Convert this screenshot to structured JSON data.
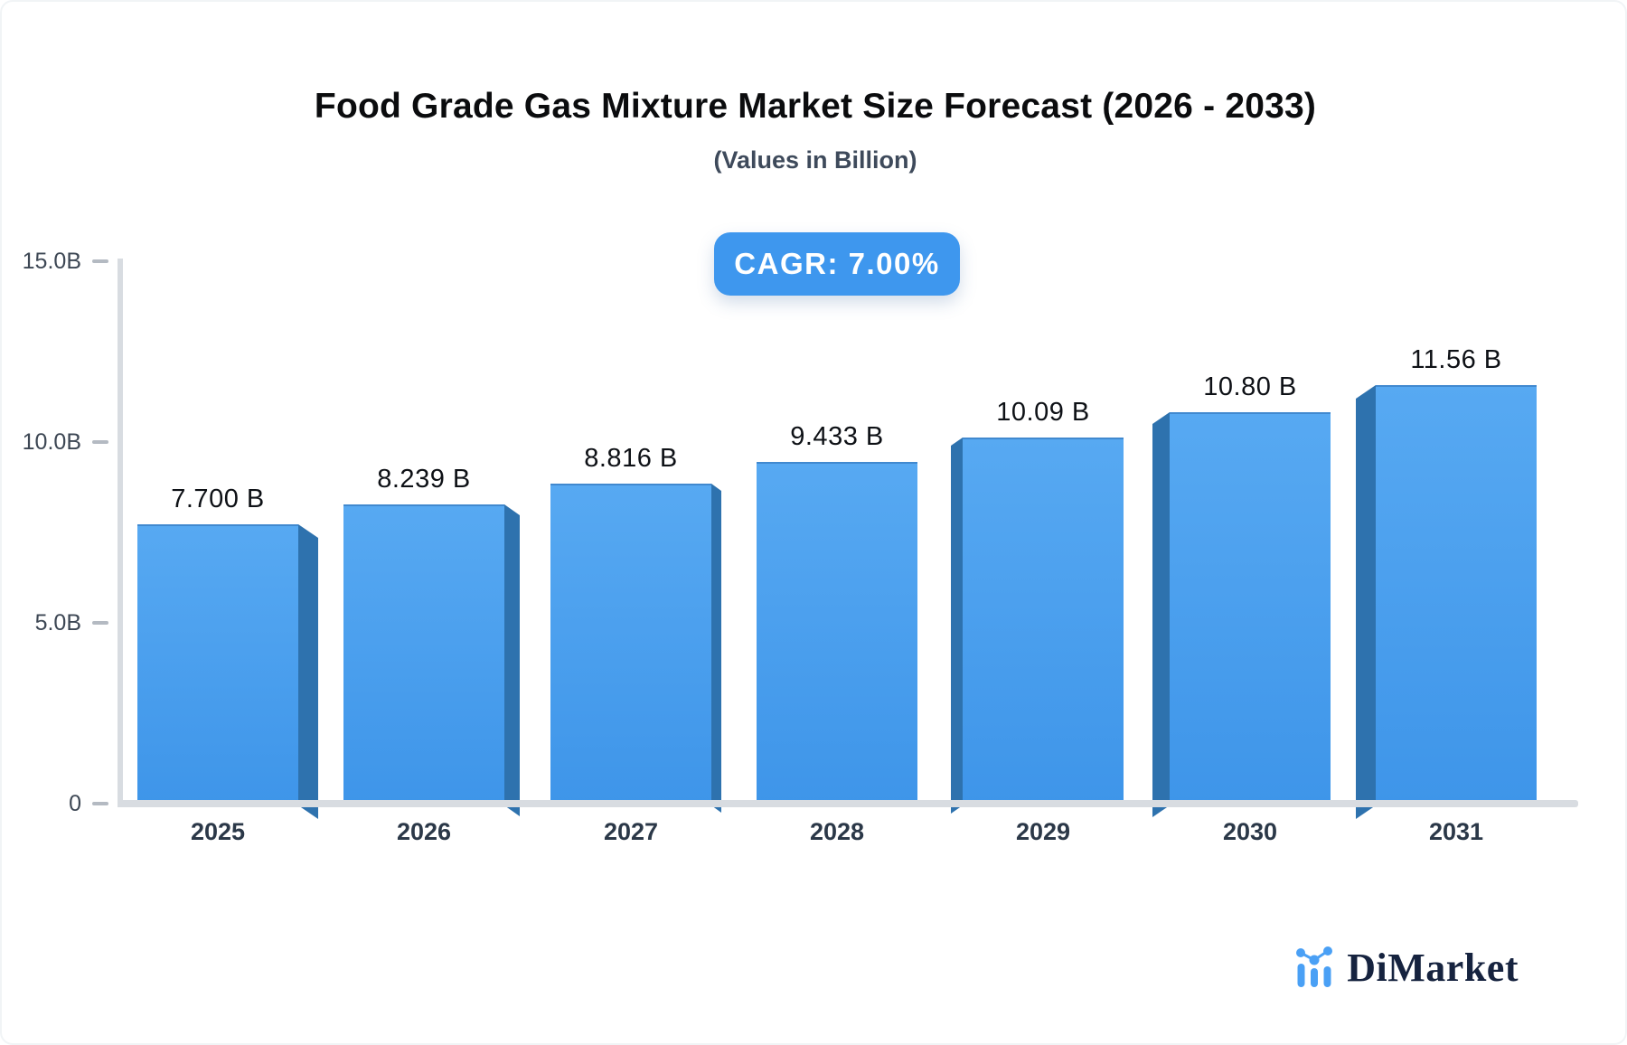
{
  "header": {
    "title": "Food Grade Gas Mixture Market Size Forecast (2026 - 2033)",
    "subtitle": "(Values in Billion)",
    "cagr_badge": "CAGR: 7.00%"
  },
  "chart_data": {
    "type": "bar",
    "title": "Food Grade Gas Mixture Market Size Forecast (2026 - 2033)",
    "subtitle": "(Values in Billion)",
    "unit": "Billion",
    "cagr_label": "CAGR: 7.00%",
    "categories": [
      "2025",
      "2026",
      "2027",
      "2028",
      "2029",
      "2030",
      "2031"
    ],
    "values": [
      7.7,
      8.239,
      8.816,
      9.433,
      10.09,
      10.8,
      11.56
    ],
    "value_labels": [
      "7.700 B",
      "8.239 B",
      "8.816 B",
      "9.433 B",
      "10.09 B",
      "10.80 B",
      "11.56 B"
    ],
    "ylim": [
      0,
      15
    ],
    "yticks": [
      {
        "value": 0,
        "label": "0"
      },
      {
        "value": 5,
        "label": "5.0B"
      },
      {
        "value": 10,
        "label": "10.0B"
      },
      {
        "value": 15,
        "label": "15.0B"
      }
    ],
    "xlabel": "",
    "ylabel": "",
    "grid": false,
    "legend": false,
    "bar_color": "#3e96ea",
    "bar_side_color": "#2e72ae"
  },
  "footer": {
    "logo_text": "DiMarket",
    "logo_icon": "mini-bar-line-chart-icon"
  },
  "colors": {
    "accent_blue": "#3e97ee",
    "bar_blue": "#3e96ea",
    "bar_side_blue": "#2e72ae",
    "axis_gray": "#d8dce1",
    "title_black": "#0b0c0e",
    "subtitle_slate": "#3e4a5b",
    "logo_navy": "#16233f",
    "logo_blue": "#4aa0f5"
  }
}
